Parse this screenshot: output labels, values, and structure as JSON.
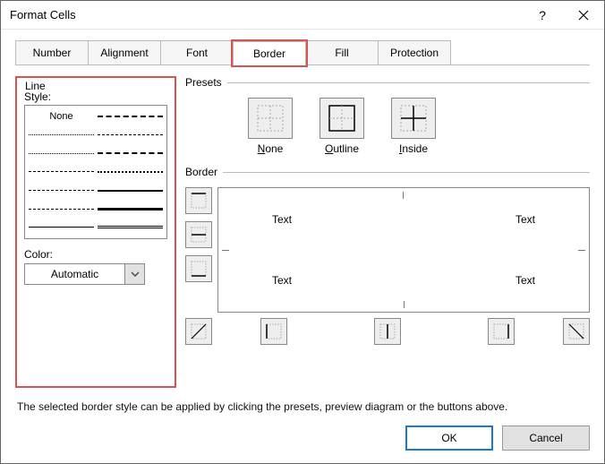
{
  "window": {
    "title": "Format Cells"
  },
  "tabs": {
    "number": "Number",
    "alignment": "Alignment",
    "font": "Font",
    "border": "Border",
    "fill": "Fill",
    "protection": "Protection"
  },
  "line": {
    "group": "Line",
    "style_label": "Style:",
    "none": "None",
    "color_label": "Color:",
    "color_value": "Automatic"
  },
  "presets": {
    "group": "Presets",
    "none": "None",
    "outline": "Outline",
    "inside": "Inside"
  },
  "border": {
    "group": "Border",
    "text": "Text"
  },
  "hint": "The selected border style can be applied by clicking the presets, preview diagram or the buttons above.",
  "buttons": {
    "ok": "OK",
    "cancel": "Cancel"
  },
  "styling": {
    "highlight_color": "#d9534f",
    "primary_border": "#1979ca",
    "line_styles_left": [
      {
        "type": "none"
      },
      {
        "border": "1px dotted #000"
      },
      {
        "border": "1px dotted #000"
      },
      {
        "border": "1px dashed #000"
      },
      {
        "border": "1px dashed #000"
      },
      {
        "border": "1px dashed #000"
      },
      {
        "border": "1px solid #000"
      }
    ],
    "line_styles_right": [
      {
        "border": "2px dashed #000"
      },
      {
        "border": "1px dashed #000"
      },
      {
        "border": "2px dashed #000"
      },
      {
        "border": "2px dotted #000"
      },
      {
        "border": "2px solid #000"
      },
      {
        "border": "3px solid #000"
      },
      {
        "type": "double"
      }
    ]
  }
}
